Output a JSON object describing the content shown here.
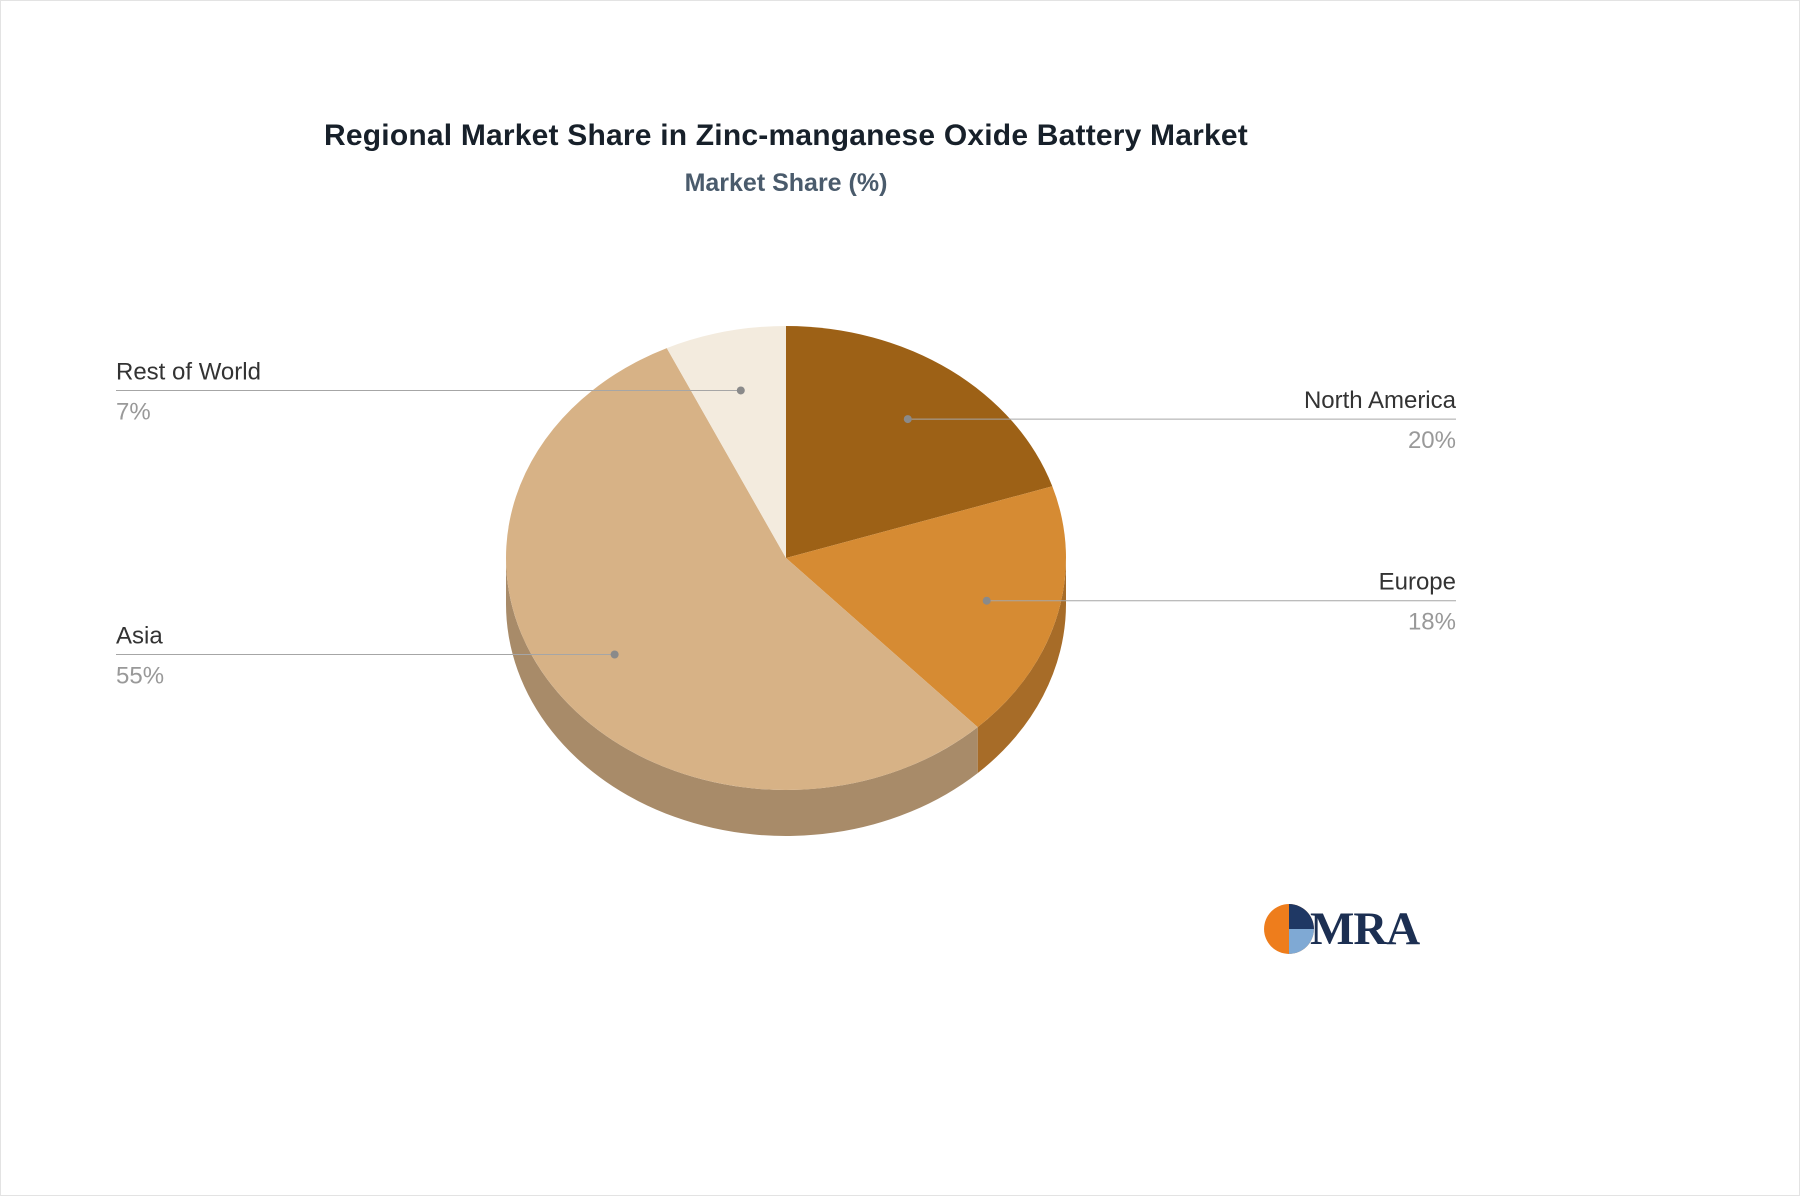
{
  "chart_data": {
    "type": "pie",
    "style": "pie-3d",
    "title": "Regional Market Share in Zinc-manganese Oxide Battery Market",
    "subtitle": "Market Share (%)",
    "unit": "%",
    "start_angle_deg": -90,
    "direction": "clockwise",
    "legend_position": "none",
    "label_style": "outside-leader-lines",
    "series": [
      {
        "label": "North America",
        "value": 20,
        "display": "20%",
        "color": "#9D6116",
        "side": "right"
      },
      {
        "label": "Europe",
        "value": 18,
        "display": "18%",
        "color": "#D68B33",
        "side": "right"
      },
      {
        "label": "Asia",
        "value": 55,
        "display": "55%",
        "color": "#D7B286",
        "side": "left"
      },
      {
        "label": "Rest of World",
        "value": 7,
        "display": "7%",
        "color": "#F3EBDE",
        "side": "left"
      }
    ],
    "label_color": "#333333",
    "value_color": "#999999",
    "leader_line_color": "#a6a6a6",
    "leader_dot_color": "#8a8a8a"
  },
  "branding": {
    "logo_text": "MRA",
    "logo_text_color": "#1c2f52",
    "logo_icon_colors": {
      "orange": "#ee7d1c",
      "navy": "#1f3864",
      "light_blue": "#7fa9d4"
    }
  }
}
